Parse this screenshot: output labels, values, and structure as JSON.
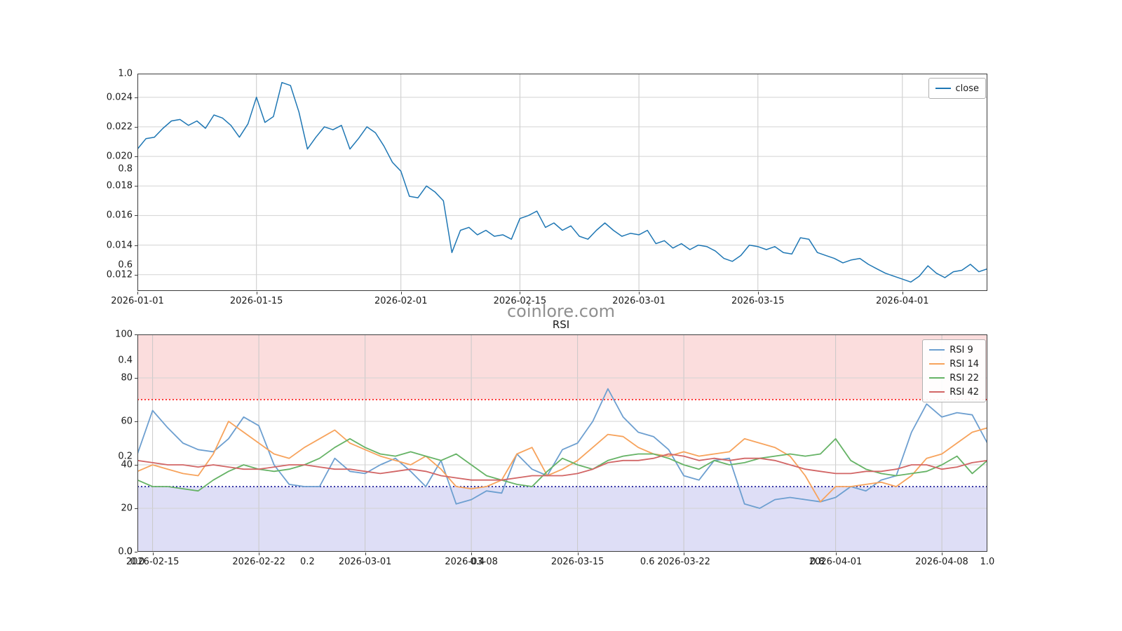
{
  "watermark": "coinlore.com",
  "outer_axis": {
    "y_labels": [
      {
        "pos": 1.0,
        "label": "1.0"
      },
      {
        "pos": 0.8,
        "label": "0.8"
      },
      {
        "pos": 0.6,
        "label": "0.6"
      },
      {
        "pos": 0.4,
        "label": "0.4"
      },
      {
        "pos": 0.2,
        "label": "0.2"
      },
      {
        "pos": 0.0,
        "label": "0.0"
      }
    ],
    "x_labels": [
      {
        "pos": 0.0,
        "label": "0.0"
      },
      {
        "pos": 0.2,
        "label": "0.2"
      },
      {
        "pos": 0.4,
        "label": "0.4"
      },
      {
        "pos": 0.6,
        "label": "0.6"
      },
      {
        "pos": 0.8,
        "label": "0.8"
      },
      {
        "pos": 1.0,
        "label": "1.0"
      }
    ]
  },
  "chart_data": [
    {
      "name": "price",
      "type": "line",
      "title": "",
      "start_date": "2026-01-01",
      "end_date": "2026-04-11",
      "freq": "daily",
      "ylim": [
        0.0109,
        0.0256
      ],
      "grid": true,
      "legend_position": "upper right",
      "yticks": [
        {
          "value": 0.012,
          "label": "0.012"
        },
        {
          "value": 0.014,
          "label": "0.014"
        },
        {
          "value": 0.016,
          "label": "0.016"
        },
        {
          "value": 0.018,
          "label": "0.018"
        },
        {
          "value": 0.02,
          "label": "0.020"
        },
        {
          "value": 0.022,
          "label": "0.022"
        },
        {
          "value": 0.024,
          "label": "0.024"
        }
      ],
      "xticks": [
        {
          "date": "2026-01-01",
          "label": "2026-01-01"
        },
        {
          "date": "2026-01-15",
          "label": "2026-01-15"
        },
        {
          "date": "2026-02-01",
          "label": "2026-02-01"
        },
        {
          "date": "2026-02-15",
          "label": "2026-02-15"
        },
        {
          "date": "2026-03-01",
          "label": "2026-03-01"
        },
        {
          "date": "2026-03-15",
          "label": "2026-03-15"
        },
        {
          "date": "2026-04-01",
          "label": "2026-04-01"
        }
      ],
      "series": [
        {
          "name": "close",
          "color": "#1f77b4",
          "width": 1.5,
          "values": [
            0.0205,
            0.0212,
            0.0213,
            0.0219,
            0.0224,
            0.0225,
            0.0221,
            0.0224,
            0.0219,
            0.0228,
            0.0226,
            0.0221,
            0.0213,
            0.0222,
            0.024,
            0.0223,
            0.0227,
            0.025,
            0.0248,
            0.023,
            0.0205,
            0.0213,
            0.022,
            0.0218,
            0.0221,
            0.0205,
            0.0212,
            0.022,
            0.0216,
            0.0207,
            0.0196,
            0.019,
            0.0173,
            0.0172,
            0.018,
            0.0176,
            0.017,
            0.0135,
            0.015,
            0.0152,
            0.0147,
            0.015,
            0.0146,
            0.0147,
            0.0144,
            0.0158,
            0.016,
            0.0163,
            0.0152,
            0.0155,
            0.015,
            0.0153,
            0.0146,
            0.0144,
            0.015,
            0.0155,
            0.015,
            0.0146,
            0.0148,
            0.0147,
            0.015,
            0.0141,
            0.0143,
            0.0138,
            0.0141,
            0.0137,
            0.014,
            0.0139,
            0.0136,
            0.0131,
            0.0129,
            0.0133,
            0.014,
            0.0139,
            0.0137,
            0.0139,
            0.0135,
            0.0134,
            0.0145,
            0.0144,
            0.0135,
            0.0133,
            0.0131,
            0.0128,
            0.013,
            0.0131,
            0.0127,
            0.0124,
            0.0121,
            0.0119,
            0.0117,
            0.0115,
            0.0119,
            0.0126,
            0.0121,
            0.0118,
            0.0122,
            0.0123,
            0.0127,
            0.0122,
            0.0124
          ]
        }
      ]
    },
    {
      "name": "rsi",
      "type": "line",
      "title": "RSI",
      "start_date": "2026-02-14",
      "end_date": "2026-04-11",
      "freq": "daily",
      "ylim": [
        0,
        100
      ],
      "grid": true,
      "legend_position": "upper right",
      "bands": [
        {
          "name": "overbought",
          "from": 70,
          "to": 100,
          "fill": "#fbdddd",
          "edge": "#ff0000",
          "edge_style": "dotted"
        },
        {
          "name": "oversold",
          "from": 0,
          "to": 30,
          "fill": "#dedef6",
          "edge": "#00008b",
          "edge_style": "dotted"
        }
      ],
      "yticks": [
        {
          "value": 0,
          "label": "0"
        },
        {
          "value": 20,
          "label": "20"
        },
        {
          "value": 40,
          "label": "40"
        },
        {
          "value": 60,
          "label": "60"
        },
        {
          "value": 80,
          "label": "80"
        },
        {
          "value": 100,
          "label": "100"
        }
      ],
      "xticks": [
        {
          "date": "2026-02-15",
          "label": "2026-02-15"
        },
        {
          "date": "2026-02-22",
          "label": "2026-02-22"
        },
        {
          "date": "2026-03-01",
          "label": "2026-03-01"
        },
        {
          "date": "2026-03-08",
          "label": "2026-03-08"
        },
        {
          "date": "2026-03-15",
          "label": "2026-03-15"
        },
        {
          "date": "2026-03-22",
          "label": "2026-03-22"
        },
        {
          "date": "2026-04-01",
          "label": "2026-04-01"
        },
        {
          "date": "2026-04-08",
          "label": "2026-04-08"
        }
      ],
      "series": [
        {
          "name": "RSI 9",
          "color": "#6d9fd0",
          "width": 1.8,
          "values": [
            45,
            65,
            57,
            50,
            47,
            46,
            52,
            62,
            58,
            40,
            31,
            30,
            30,
            43,
            37,
            36,
            40,
            43,
            37,
            30,
            42,
            22,
            24,
            28,
            27,
            45,
            38,
            35,
            47,
            50,
            60,
            75,
            62,
            55,
            53,
            47,
            35,
            33,
            42,
            43,
            22,
            20,
            24,
            25,
            24,
            23,
            25,
            30,
            28,
            33,
            35,
            55,
            68,
            62,
            64,
            63,
            50
          ]
        },
        {
          "name": "RSI 14",
          "color": "#f7a35c",
          "width": 1.8,
          "values": [
            37,
            40,
            38,
            36,
            35,
            45,
            60,
            55,
            50,
            45,
            43,
            48,
            52,
            56,
            50,
            47,
            44,
            42,
            40,
            44,
            38,
            30,
            29,
            30,
            33,
            45,
            48,
            35,
            38,
            42,
            48,
            54,
            53,
            48,
            45,
            44,
            46,
            44,
            45,
            46,
            52,
            50,
            48,
            44,
            35,
            23,
            30,
            30,
            31,
            32,
            30,
            35,
            43,
            45,
            50,
            55,
            57
          ]
        },
        {
          "name": "RSI 22",
          "color": "#66b366",
          "width": 1.8,
          "values": [
            33,
            30,
            30,
            29,
            28,
            33,
            37,
            40,
            38,
            37,
            38,
            40,
            43,
            48,
            52,
            48,
            45,
            44,
            46,
            44,
            42,
            45,
            40,
            35,
            33,
            31,
            30,
            37,
            43,
            40,
            38,
            42,
            44,
            45,
            45,
            43,
            40,
            38,
            42,
            40,
            41,
            43,
            44,
            45,
            44,
            45,
            52,
            42,
            38,
            36,
            35,
            36,
            37,
            40,
            44,
            36,
            42
          ]
        },
        {
          "name": "RSI 42",
          "color": "#d26666",
          "width": 1.8,
          "values": [
            42,
            41,
            40,
            40,
            39,
            40,
            39,
            38,
            38,
            39,
            40,
            40,
            39,
            38,
            38,
            37,
            36,
            37,
            38,
            37,
            35,
            34,
            33,
            33,
            33,
            34,
            35,
            35,
            35,
            36,
            38,
            41,
            42,
            42,
            43,
            45,
            44,
            42,
            43,
            42,
            43,
            43,
            42,
            40,
            38,
            37,
            36,
            36,
            37,
            37,
            38,
            40,
            40,
            38,
            39,
            41,
            42
          ]
        }
      ]
    }
  ]
}
